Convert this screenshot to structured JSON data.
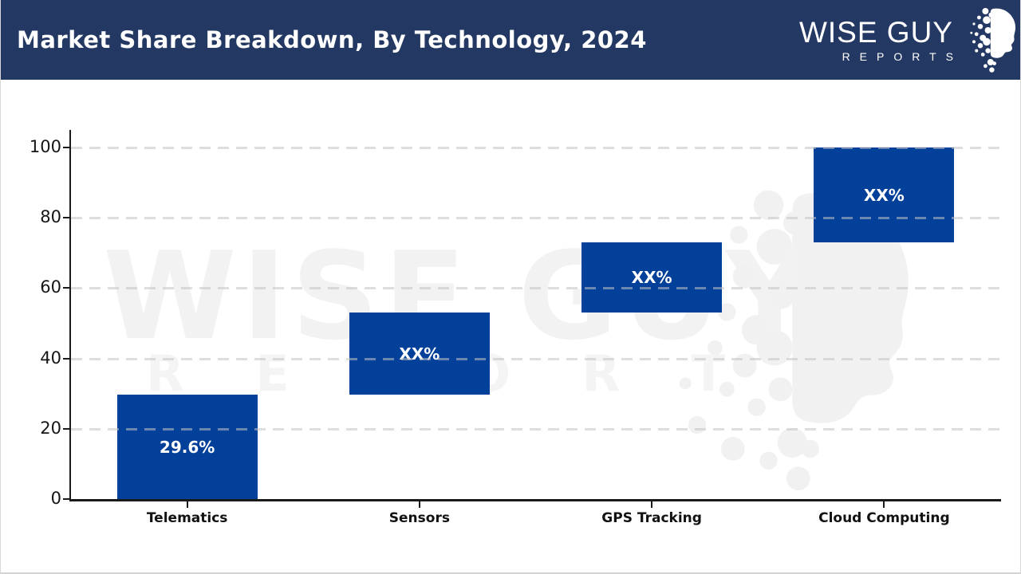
{
  "header": {
    "title": "Market Share Breakdown, By Technology, 2024",
    "bg_color": "#233862",
    "logo": {
      "name": "WISE GUY",
      "tagline": "REPORTS"
    }
  },
  "watermark": {
    "line1": "WISE GUY",
    "line2": "R E P O R T S"
  },
  "chart_data": {
    "type": "bar",
    "subtype": "waterfall",
    "title": "Market Share Breakdown, By Technology, 2024",
    "categories": [
      "Telematics",
      "Sensors",
      "GPS Tracking",
      "Cloud Computing"
    ],
    "segments": [
      {
        "category": "Telematics",
        "start": 0,
        "end": 29.6,
        "label": "29.6%"
      },
      {
        "category": "Sensors",
        "start": 29.6,
        "end": 53,
        "label": "XX%"
      },
      {
        "category": "GPS Tracking",
        "start": 53,
        "end": 73,
        "label": "XX%"
      },
      {
        "category": "Cloud Computing",
        "start": 73,
        "end": 100,
        "label": "XX%"
      }
    ],
    "y_ticks": [
      0,
      20,
      40,
      60,
      80,
      100
    ],
    "ylim": [
      0,
      105
    ],
    "xlabel": "",
    "ylabel": "",
    "grid": {
      "axis": "y",
      "style": "dashed",
      "color": "#d9d9d9"
    },
    "bar_color": "#03409a",
    "bar_label_color": "#ffffff",
    "axis_color": "#1a1a1a",
    "legend_position": "none"
  }
}
